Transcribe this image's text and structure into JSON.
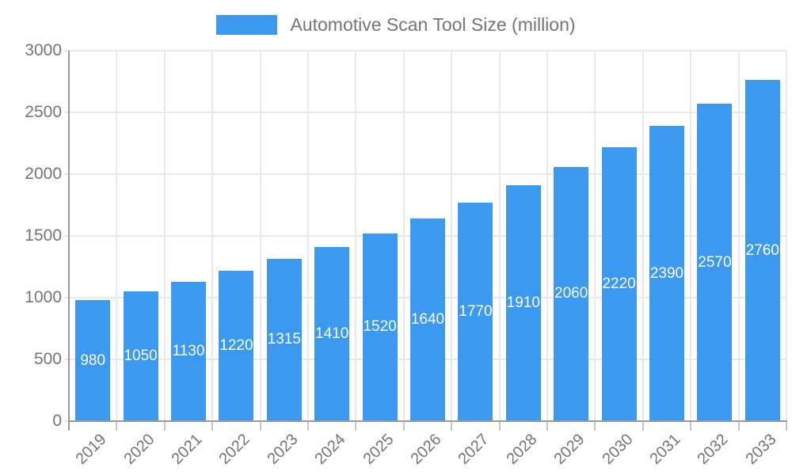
{
  "legend": {
    "label": "Automotive Scan Tool Size (million)"
  },
  "chart_data": {
    "type": "bar",
    "title": "Automotive Scan Tool Size (million)",
    "series_name": "Automotive Scan Tool Size (million)",
    "categories": [
      "2019",
      "2020",
      "2021",
      "2022",
      "2023",
      "2024",
      "2025",
      "2026",
      "2027",
      "2028",
      "2029",
      "2030",
      "2031",
      "2032",
      "2033"
    ],
    "values": [
      980,
      1050,
      1130,
      1220,
      1315,
      1410,
      1520,
      1640,
      1770,
      1910,
      2060,
      2220,
      2390,
      2570,
      2760
    ],
    "xlabel": "",
    "ylabel": "",
    "ylim": [
      0,
      3000
    ],
    "yticks": [
      0,
      500,
      1000,
      1500,
      2000,
      2500,
      3000
    ],
    "grid": true,
    "legend_position": "top",
    "bar_color": "#3B9AEF",
    "value_label_color": "#ffffff",
    "axis_text_color": "#757575"
  }
}
